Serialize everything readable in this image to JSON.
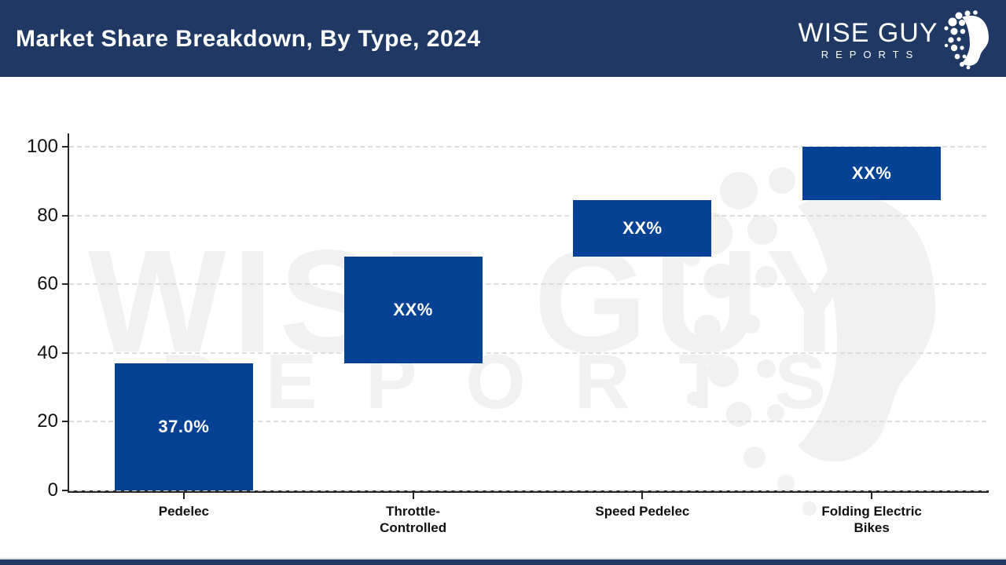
{
  "header": {
    "title": "Market Share Breakdown, By Type, 2024",
    "logo": {
      "line1": "WISE GUY",
      "line2": "REPORTS"
    }
  },
  "watermark": {
    "line1": "WISE GUY",
    "line2": "REPORTS"
  },
  "colors": {
    "header_bg": "#1f3864",
    "bar": "#064293",
    "bar_label": "#ffffff",
    "axis": "#262626",
    "gridline": "#dcdcdc",
    "watermark": "#f1f1f1"
  },
  "chart_data": {
    "type": "bar",
    "subtype": "waterfall-stacked-market-share",
    "title": "Market Share Breakdown, By Type, 2024",
    "categories": [
      "Pedelec",
      "Throttle-Controlled",
      "Speed Pedelec",
      "Folding Electric Bikes"
    ],
    "tick_lines": [
      [
        "Pedelec"
      ],
      [
        "Throttle-",
        "Controlled"
      ],
      [
        "Speed Pedelec"
      ],
      [
        "Folding Electric",
        "Bikes"
      ]
    ],
    "segments": [
      {
        "label": "Pedelec",
        "start": 0,
        "end": 37,
        "value": 37.0,
        "value_label": "37.0%"
      },
      {
        "label": "Throttle-Controlled",
        "start": 37,
        "end": 68,
        "value": 31,
        "value_label": "XX%"
      },
      {
        "label": "Speed Pedelec",
        "start": 68,
        "end": 84.5,
        "value": 16.5,
        "value_label": "XX%"
      },
      {
        "label": "Folding Electric Bikes",
        "start": 84.5,
        "end": 100,
        "value": 15.5,
        "value_label": "XX%"
      }
    ],
    "ylim": [
      0,
      100
    ],
    "yticks": [
      0,
      20,
      40,
      60,
      80,
      100
    ],
    "xlabel": "",
    "ylabel": "",
    "grid": "horizontal-dashed",
    "legend": "none",
    "bar_color": "#064293",
    "bar_label_color": "#ffffff"
  }
}
